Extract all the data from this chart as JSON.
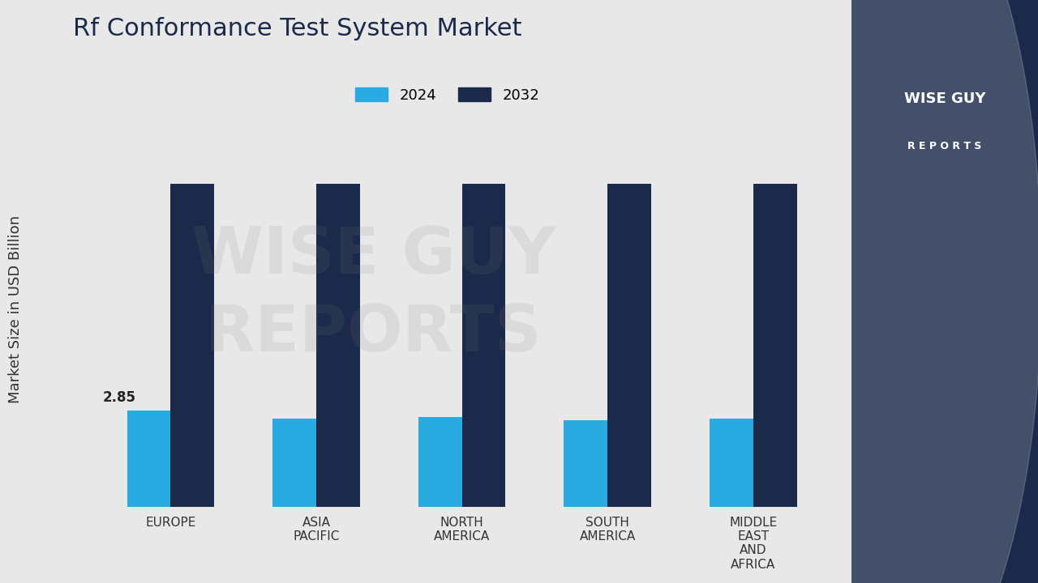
{
  "title": "Rf Conformance Test System Market",
  "ylabel": "Market Size in USD Billion",
  "categories": [
    "EUROPE",
    "ASIA\nPACIFIC",
    "NORTH\nAMERICA",
    "SOUTH\nAMERICA",
    "MIDDLE\nEAST\nAND\nAFRICA"
  ],
  "values_2024": [
    2.85,
    2.6,
    2.65,
    2.55,
    2.6
  ],
  "values_2032": [
    9.5,
    9.5,
    9.5,
    9.5,
    9.5
  ],
  "color_2024": "#29ABE2",
  "color_2032": "#1B2A4A",
  "annotation_value": "2.85",
  "annotation_category_idx": 0,
  "legend_labels": [
    "2024",
    "2032"
  ],
  "background_color": "#E8E8E8",
  "right_panel_color": "#1B2A4A",
  "title_color": "#1B2A4A",
  "ylim": [
    0,
    12
  ],
  "bar_width": 0.3,
  "title_fontsize": 22,
  "ylabel_fontsize": 13,
  "tick_fontsize": 11,
  "legend_fontsize": 13
}
